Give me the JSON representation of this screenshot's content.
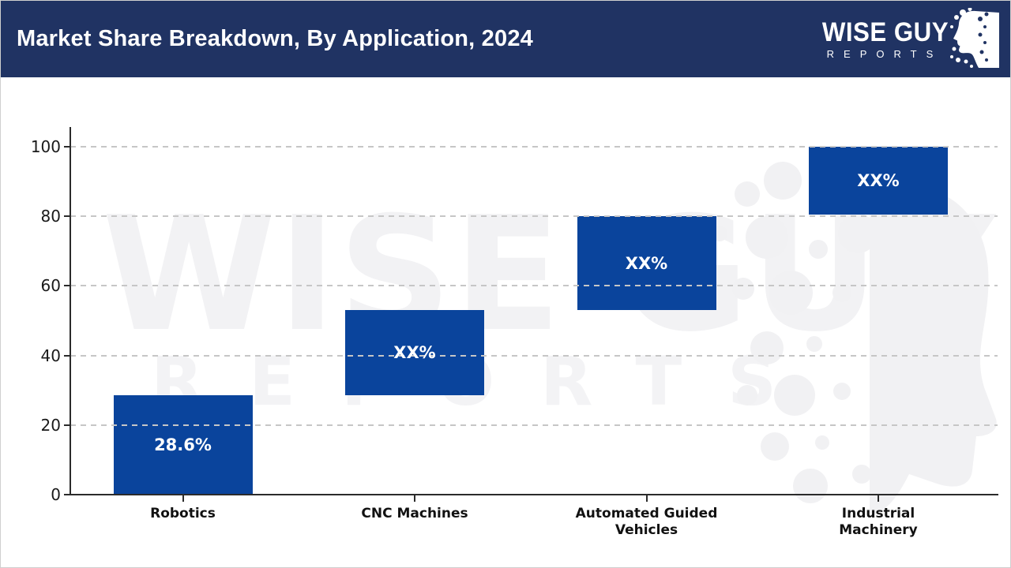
{
  "header": {
    "title": "Market Share Breakdown, By Application, 2024",
    "logo": {
      "line1": "WISE GUY",
      "line2": "REPORTS"
    }
  },
  "watermark": {
    "line1": "WISE GUY",
    "line2": "REPORTS"
  },
  "chart_data": {
    "type": "bar",
    "subtype": "waterfall-floating-segments",
    "title": "Market Share Breakdown, By Application, 2024",
    "xlabel": "",
    "ylabel": "",
    "categories": [
      "Robotics",
      "CNC Machines",
      "Automated Guided\nVehicles",
      "Industrial\nMachinery"
    ],
    "segments": [
      {
        "category": "Robotics",
        "from": 0,
        "to": 28.6,
        "label": "28.6%"
      },
      {
        "category": "CNC Machines",
        "from": 28.6,
        "to": 53,
        "label": "XX%"
      },
      {
        "category": "Automated Guided Vehicles",
        "from": 53,
        "to": 80,
        "label": "XX%"
      },
      {
        "category": "Industrial Machinery",
        "from": 80.5,
        "to": 100,
        "label": "XX%"
      }
    ],
    "yticks": [
      0,
      20,
      40,
      60,
      80,
      100
    ],
    "ylim": [
      0,
      105
    ],
    "grid": "horizontal-dashed",
    "legend": "none",
    "bar_color": "#0a449c",
    "bar_label_color": "#ffffff"
  },
  "colors": {
    "header_bg": "#203363",
    "bar": "#0a449c",
    "axis": "#2b2b2b",
    "grid": "#c6c6c6",
    "watermark": "#f2f2f4",
    "page_border": "#cfcfcf",
    "tick_text": "#1a1a1a"
  }
}
